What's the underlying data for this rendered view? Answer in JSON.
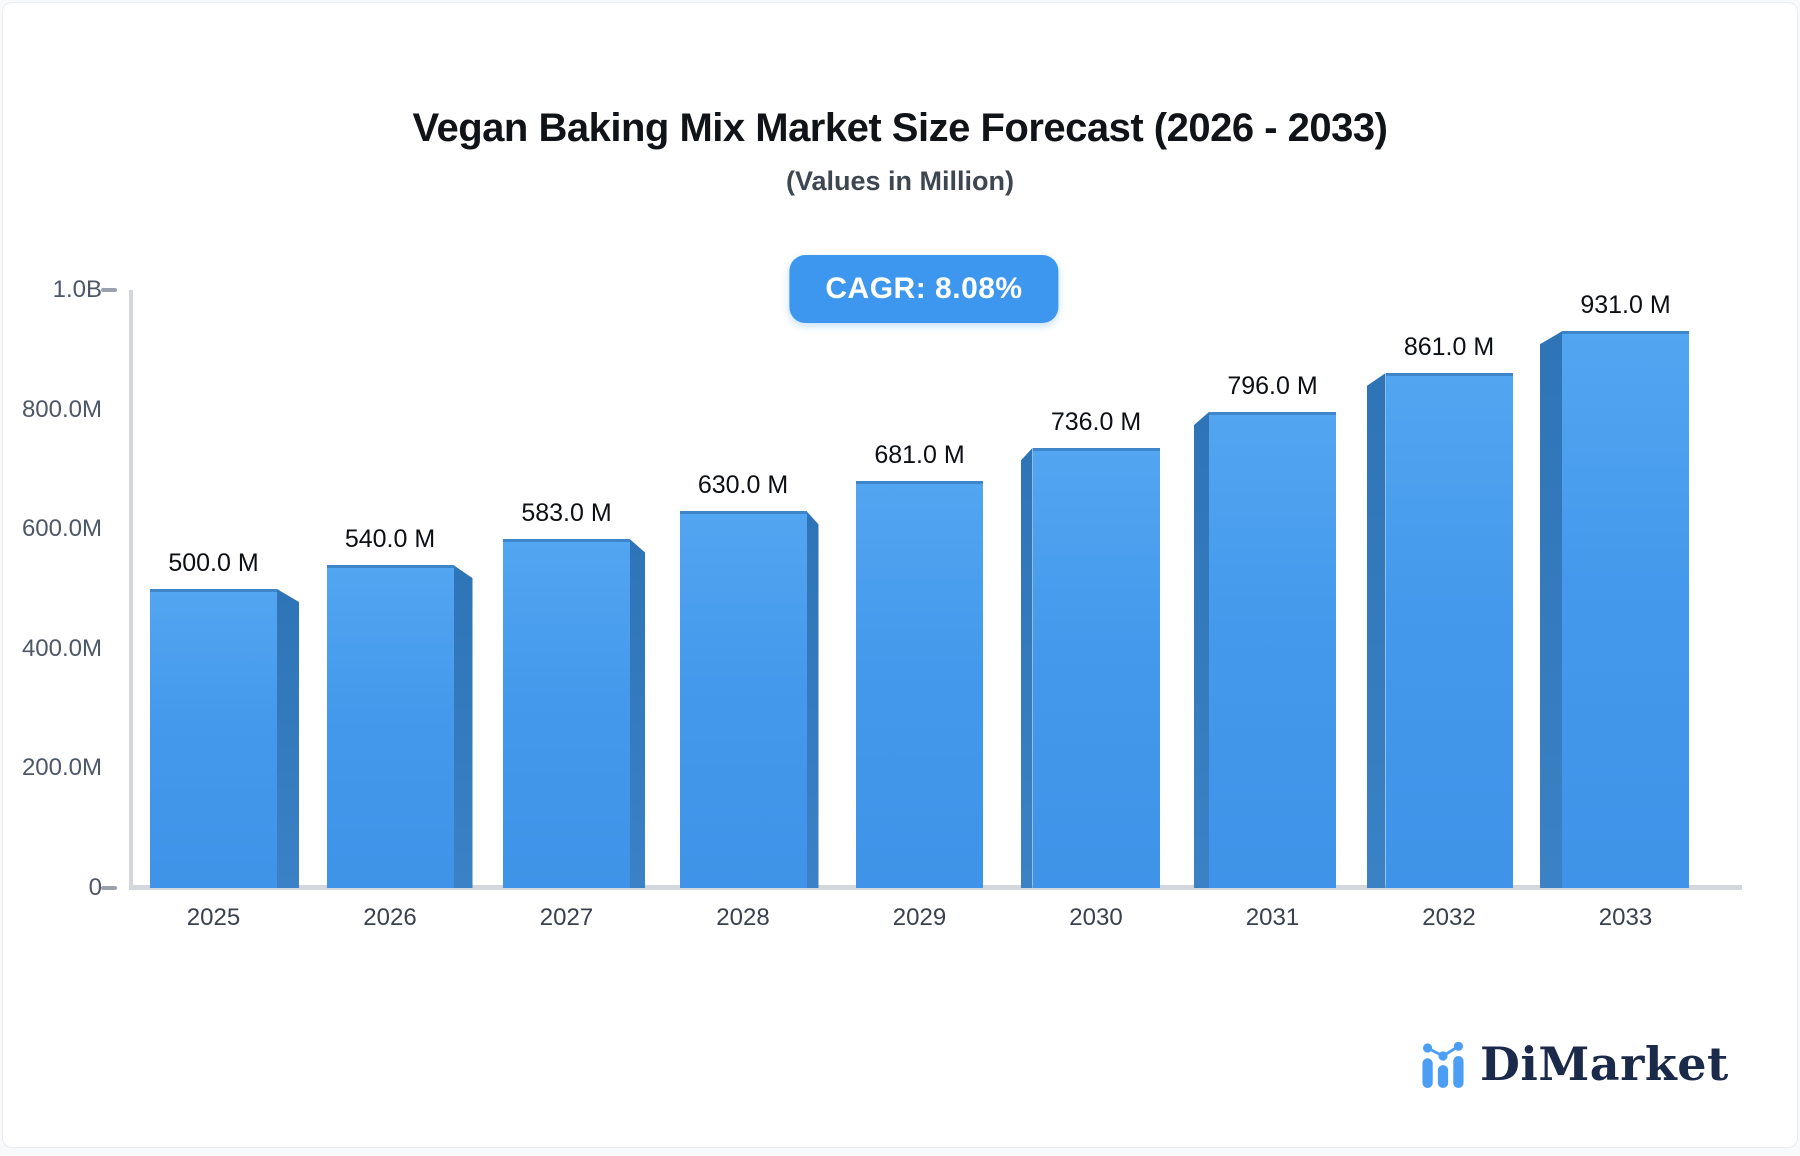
{
  "header": {
    "title": "Vegan Baking Mix Market Size Forecast (2026 - 2033)",
    "subtitle": "(Values in Million)",
    "cagr_label": "CAGR: 8.08%"
  },
  "chart_data": {
    "type": "bar",
    "title": "Vegan Baking Mix Market Size Forecast (2026 - 2033)",
    "subtitle": "(Values in Million)",
    "categories": [
      "2025",
      "2026",
      "2027",
      "2028",
      "2029",
      "2030",
      "2031",
      "2032",
      "2033"
    ],
    "values": [
      500,
      540,
      583,
      630,
      681,
      736,
      796,
      861,
      931
    ],
    "value_labels": [
      "500.0 M",
      "540.0 M",
      "583.0 M",
      "630.0 M",
      "681.0 M",
      "736.0 M",
      "796.0 M",
      "861.0 M",
      "931.0 M"
    ],
    "y_axis_ticks": [
      "1.0B",
      "800.0M",
      "600.0M",
      "400.0M",
      "200.0M",
      "0"
    ],
    "ylim_millions": [
      0,
      1000
    ],
    "cagr_percent": 8.08,
    "grid": "off",
    "legend": "none",
    "bar_face_color": "#479ceb",
    "bar_side_color": "#3079bd",
    "badge_color": "#3d97ef",
    "axis_color": "#d3d6db"
  },
  "logo": {
    "name": "DiMarket",
    "icon": "mini-bar-chart-icon"
  }
}
